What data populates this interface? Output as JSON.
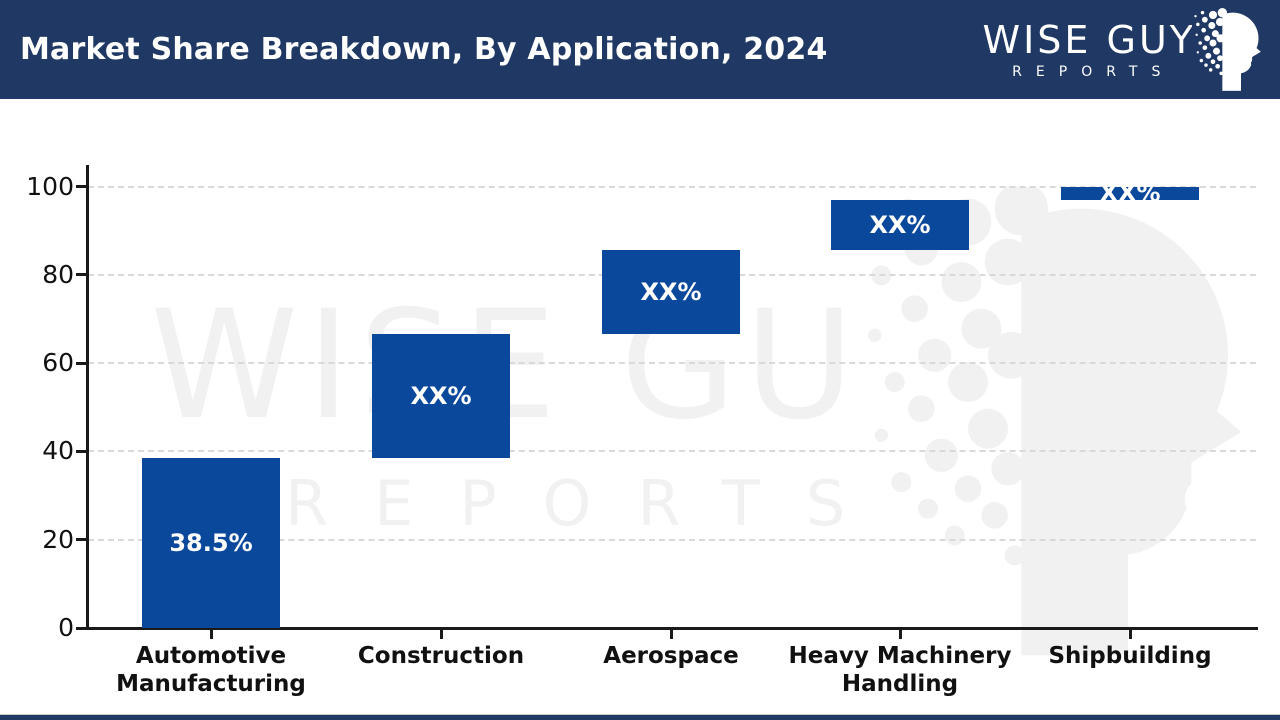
{
  "header": {
    "title": "Market Share Breakdown, By Application, 2024",
    "bg_color": "#1f3864",
    "logo": {
      "wordmark": "WISE GUY",
      "subtext": "REPORTS",
      "head_icon": "dotted-head-profile"
    }
  },
  "watermark": {
    "wordmark": "WISE GUY",
    "subtext": "REPORTS"
  },
  "footer": {
    "strip_color": "#1f3864"
  },
  "chart_data": {
    "type": "bar",
    "subtype": "floating-segment-waterfall",
    "title": "Market Share Breakdown, By Application, 2024",
    "categories": [
      "Automotive Manufacturing",
      "Construction",
      "Aerospace",
      "Heavy Machinery Handling",
      "Shipbuilding"
    ],
    "series": [
      {
        "name": "Market share by application",
        "segments": [
          {
            "category": "Automotive Manufacturing",
            "start": 0,
            "end": 38.5,
            "label": "38.5%"
          },
          {
            "category": "Construction",
            "start": 38.5,
            "end": 66.5,
            "label": "XX%"
          },
          {
            "category": "Aerospace",
            "start": 66.5,
            "end": 85.7,
            "label": "XX%"
          },
          {
            "category": "Heavy Machinery Handling",
            "start": 85.7,
            "end": 97,
            "label": "XX%"
          },
          {
            "category": "Shipbuilding",
            "start": 97,
            "end": 100,
            "label": "XX%"
          }
        ]
      }
    ],
    "xlabel": "",
    "ylabel": "",
    "ylim": [
      0,
      100
    ],
    "yticks": [
      0,
      20,
      40,
      60,
      80,
      100
    ],
    "grid": "horizontal-dashed",
    "legend_position": "none",
    "bar_color": "#0a489c",
    "bar_label_color": "#ffffff",
    "axis_color": "#1a1a1a",
    "gridline_color": "#d9d9d9"
  }
}
